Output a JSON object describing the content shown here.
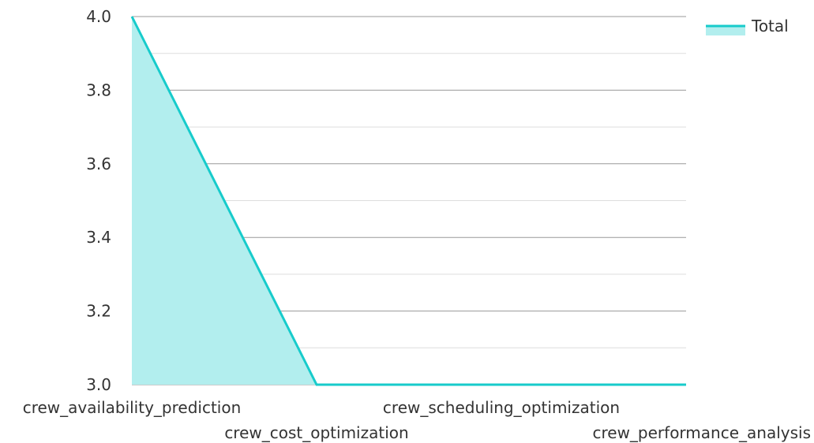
{
  "chart_data": {
    "type": "area",
    "categories": [
      "crew_availability_prediction",
      "crew_cost_optimization",
      "crew_scheduling_optimization",
      "crew_performance_analysis"
    ],
    "series": [
      {
        "name": "Total",
        "values": [
          4.0,
          3.0,
          3.0,
          3.0
        ]
      }
    ],
    "ylim": [
      3.0,
      4.0
    ],
    "yticks": [
      "3.0",
      "3.2",
      "3.4",
      "3.6",
      "3.8",
      "4.0"
    ],
    "y_minor_step": 0.1,
    "grid": true,
    "legend": {
      "position": "top-right"
    },
    "colors": {
      "line": "#17cbcb",
      "fill": "#b2eeee",
      "grid": "#999999",
      "minor_grid": "#dddddd",
      "text": "#333333"
    }
  }
}
